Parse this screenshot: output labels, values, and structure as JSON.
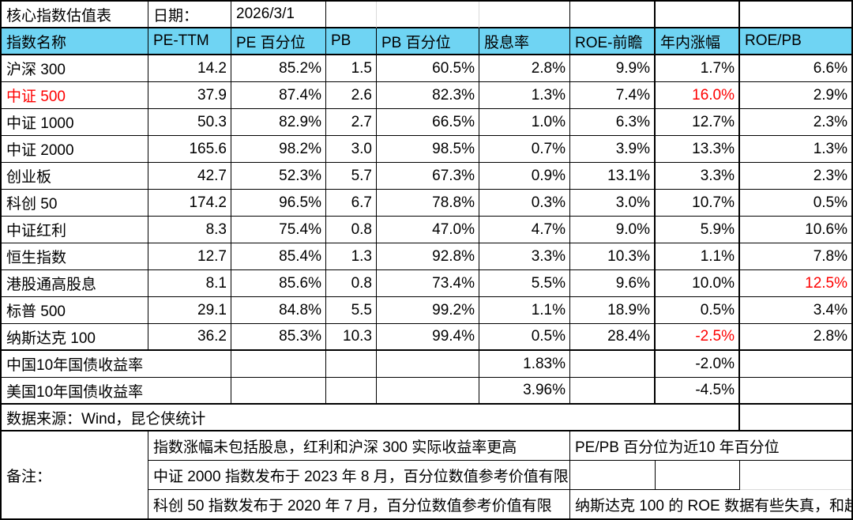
{
  "title_row": {
    "title": "核心指数估值表",
    "date_label": "日期：",
    "date_value": "2026/3/1"
  },
  "header": {
    "columns": [
      "指数名称",
      "PE-TTM",
      "PE 百分位",
      "PB",
      "PB 百分位",
      "股息率",
      "ROE-前瞻",
      "年内涨幅",
      "ROE/PB"
    ]
  },
  "rows": [
    {
      "name": "沪深 300",
      "values": [
        "14.2",
        "85.2%",
        "1.5",
        "60.5%",
        "2.8%",
        "9.9%",
        "1.7%",
        "6.6%"
      ],
      "red": []
    },
    {
      "name": "中证 500",
      "values": [
        "37.9",
        "87.4%",
        "2.6",
        "82.3%",
        "1.3%",
        "7.4%",
        "16.0%",
        "2.9%"
      ],
      "red": [
        "name",
        6
      ]
    },
    {
      "name": "中证 1000",
      "values": [
        "50.3",
        "82.9%",
        "2.7",
        "66.5%",
        "1.0%",
        "6.3%",
        "12.7%",
        "2.3%"
      ],
      "red": []
    },
    {
      "name": "中证 2000",
      "values": [
        "165.6",
        "98.2%",
        "3.0",
        "98.5%",
        "0.7%",
        "3.9%",
        "13.3%",
        "1.3%"
      ],
      "red": []
    },
    {
      "name": "创业板",
      "values": [
        "42.7",
        "52.3%",
        "5.7",
        "67.3%",
        "0.9%",
        "13.1%",
        "3.3%",
        "2.3%"
      ],
      "red": []
    },
    {
      "name": "科创 50",
      "values": [
        "174.2",
        "96.5%",
        "6.7",
        "78.8%",
        "0.3%",
        "3.0%",
        "10.7%",
        "0.5%"
      ],
      "red": []
    },
    {
      "name": "中证红利",
      "values": [
        "8.3",
        "75.4%",
        "0.8",
        "47.0%",
        "4.7%",
        "9.0%",
        "5.9%",
        "10.6%"
      ],
      "red": []
    },
    {
      "name": "恒生指数",
      "values": [
        "12.7",
        "85.4%",
        "1.3",
        "92.8%",
        "3.3%",
        "10.3%",
        "1.1%",
        "7.8%"
      ],
      "red": []
    },
    {
      "name": "港股通高股息",
      "values": [
        "8.1",
        "85.6%",
        "0.8",
        "73.4%",
        "5.5%",
        "9.6%",
        "10.0%",
        "12.5%"
      ],
      "red": [
        7
      ]
    },
    {
      "name": "标普 500",
      "values": [
        "29.1",
        "84.8%",
        "5.5",
        "99.2%",
        "1.1%",
        "18.9%",
        "0.5%",
        "3.4%"
      ],
      "red": []
    },
    {
      "name": "纳斯达克 100",
      "values": [
        "36.2",
        "85.3%",
        "10.3",
        "99.4%",
        "0.5%",
        "28.4%",
        "-2.5%",
        "2.8%"
      ],
      "red": [
        6
      ]
    }
  ],
  "bond_rows": [
    {
      "name": "中国10年国债收益率",
      "values": [
        "",
        "",
        "",
        "1.83%",
        "",
        "-2.0%",
        ""
      ]
    },
    {
      "name": "美国10年国债收益率",
      "values": [
        "",
        "",
        "",
        "3.96%",
        "",
        "-4.5%",
        ""
      ]
    }
  ],
  "footer": {
    "source": "数据来源：Wind，昆仑侠统计",
    "notes_label": "备注：",
    "notes_left": [
      "指数涨幅未包括股息，红利和沪深 300 实际收益率更高",
      "中证 2000 指数发布于 2023 年 8 月，百分位数值参考价值有限",
      "科创 50 指数发布于 2020 年 7 月，百分位数值参考价值有限"
    ],
    "notes_right_1": "PE/PB 百分位为近10 年百分位",
    "notes_right_3": "纳斯达克 100 的 ROE 数据有些失真，和超"
  },
  "colors": {
    "header_bg": "#6fd4f3",
    "red_text": "#fe0000",
    "grid_black": "#000000",
    "grid_gray": "#d9d9d9"
  }
}
